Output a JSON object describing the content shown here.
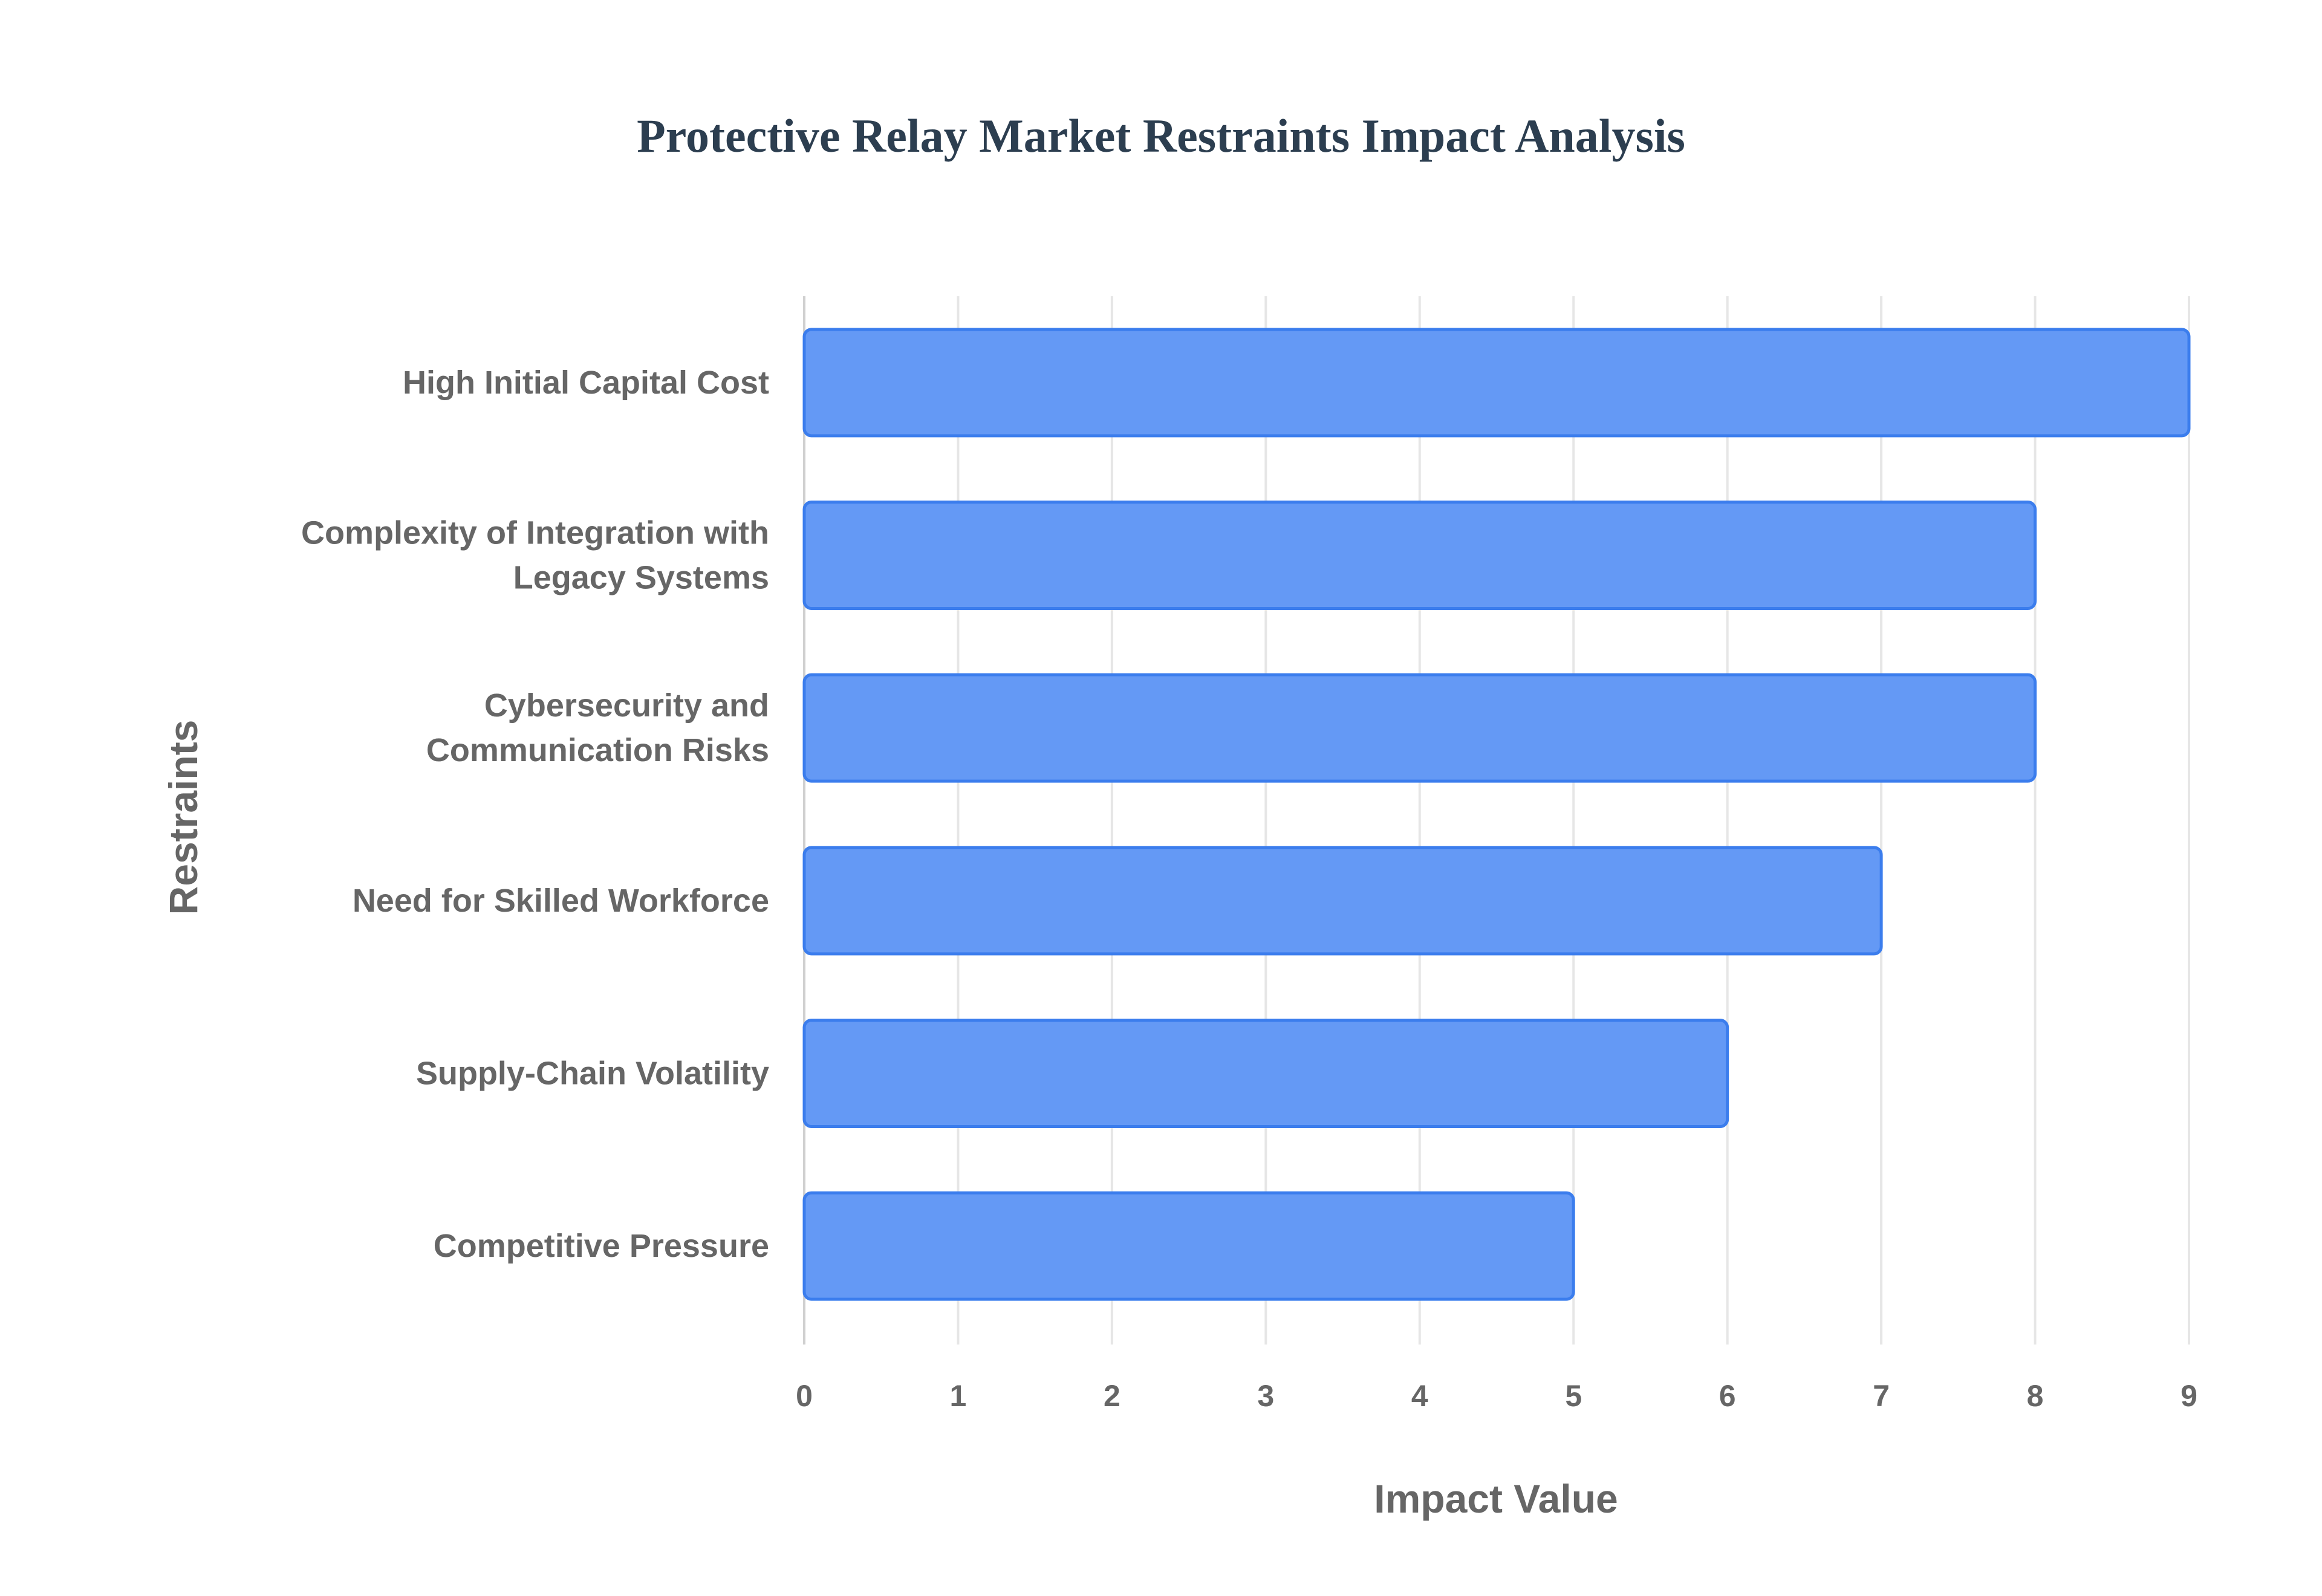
{
  "chart_data": {
    "type": "bar",
    "orientation": "horizontal",
    "title": "Protective Relay Market Restraints Impact Analysis",
    "xlabel": "Impact Value",
    "ylabel": "Restraints",
    "categories": [
      [
        "High Initial Capital Cost"
      ],
      [
        "Complexity of Integration with",
        "Legacy Systems"
      ],
      [
        "Cybersecurity and",
        "Communication Risks"
      ],
      [
        "Need for Skilled Workforce"
      ],
      [
        "Supply-Chain Volatility"
      ],
      [
        "Competitive Pressure"
      ]
    ],
    "values": [
      9,
      8,
      8,
      7,
      6,
      5
    ],
    "xlim": [
      0,
      9
    ],
    "xticks": [
      0,
      1,
      2,
      3,
      4,
      5,
      6,
      7,
      8,
      9
    ],
    "grid": true,
    "bar_color": "#6499f5",
    "bar_border_color": "#3b7ded"
  }
}
